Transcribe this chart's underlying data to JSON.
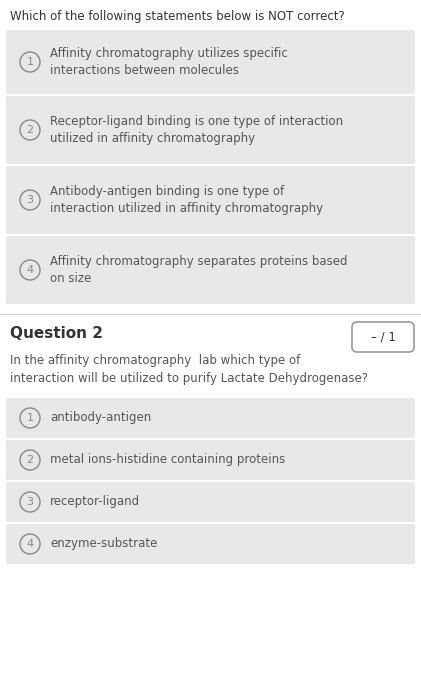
{
  "bg_color": "#ffffff",
  "option_bg_color": "#e8e8e8",
  "text_color": "#555555",
  "circle_color": "#888888",
  "title_color": "#333333",
  "sep_color": "#cccccc",
  "q1_title": "Which of the following statements below is NOT correct?",
  "q1_options": [
    "Affinity chromatography utilizes specific\ninteractions between molecules",
    "Receptor-ligand binding is one type of interaction\nutilized in affinity chromatography",
    "Antibody-antigen binding is one type of\ninteraction utilized in affinity chromatography",
    "Affinity chromatography separates proteins based\non size"
  ],
  "q2_header": "Question 2",
  "q2_score": "– / 1",
  "q2_body": "In the affinity chromatography  lab which type of\ninteraction will be utilized to purify Lactate Dehydrogenase?",
  "q2_options": [
    "antibody-antigen",
    "metal ions-histidine containing proteins",
    "receptor-ligand",
    "enzyme-substrate"
  ]
}
